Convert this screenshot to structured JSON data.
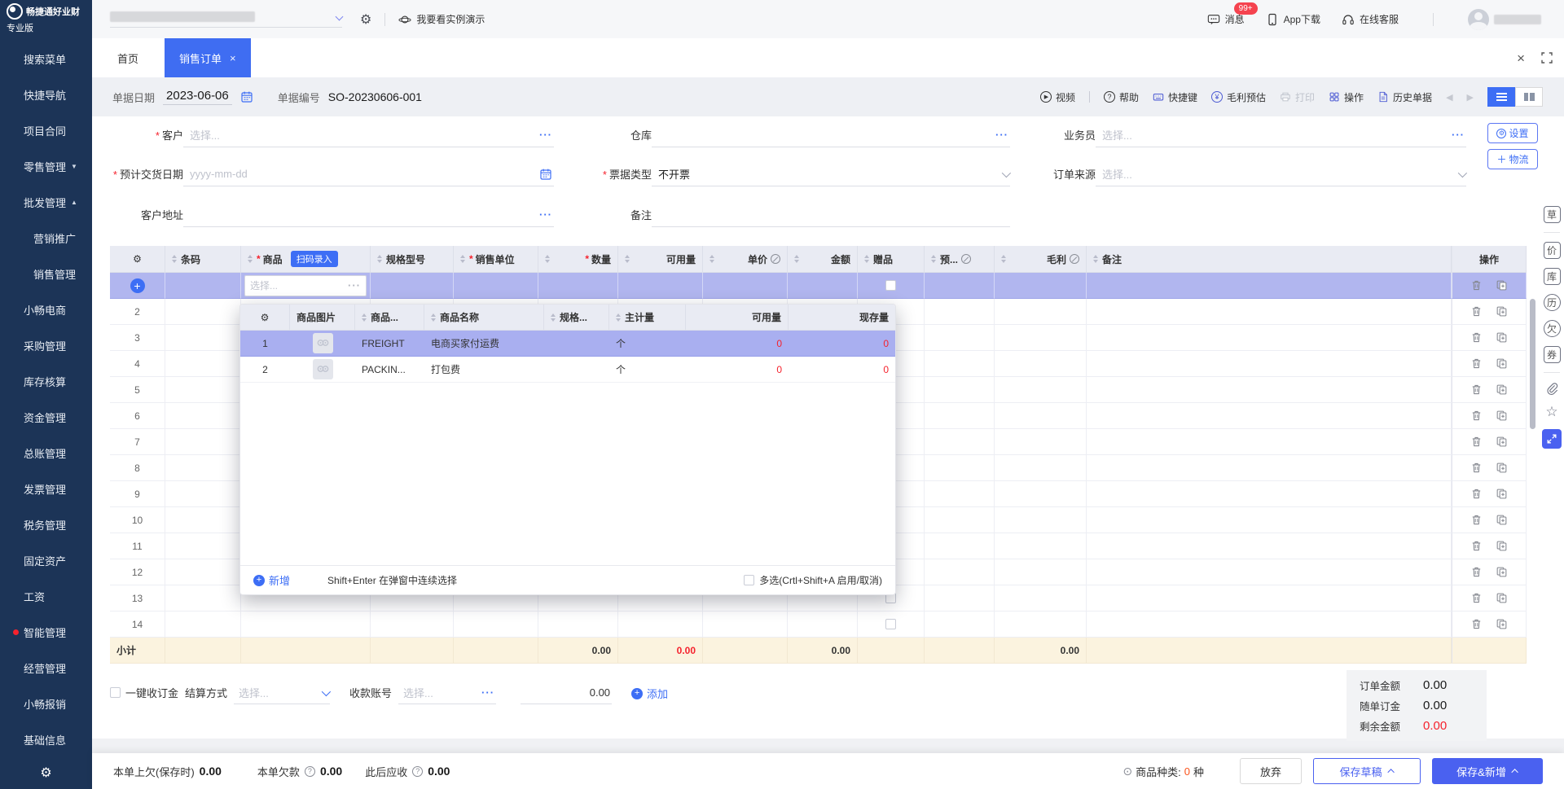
{
  "topbar": {
    "brand": "畅捷通好业财",
    "edition": "专业版",
    "demo": "我要看实例演示",
    "messages": "消息",
    "badge": "99+",
    "app_download": "App下载",
    "support": "在线客服"
  },
  "sidebar": {
    "items": [
      {
        "label": "搜索菜单"
      },
      {
        "label": "快捷导航"
      },
      {
        "label": "项目合同"
      },
      {
        "label": "零售管理",
        "arrow": "down"
      },
      {
        "label": "批发管理",
        "arrow": "up"
      },
      {
        "label": "营销推广",
        "sub": true
      },
      {
        "label": "销售管理",
        "sub": true
      },
      {
        "label": "小畅电商"
      },
      {
        "label": "采购管理"
      },
      {
        "label": "库存核算"
      },
      {
        "label": "资金管理"
      },
      {
        "label": "总账管理"
      },
      {
        "label": "发票管理"
      },
      {
        "label": "税务管理"
      },
      {
        "label": "固定资产"
      },
      {
        "label": "工资"
      },
      {
        "label": "智能管理",
        "dot": true
      },
      {
        "label": "经营管理"
      },
      {
        "label": "小畅报销"
      },
      {
        "label": "基础信息"
      }
    ]
  },
  "tabs": {
    "home": "首页",
    "current": "销售订单"
  },
  "docbar": {
    "date_label": "单据日期",
    "date": "2023-06-06",
    "no_label": "单据编号",
    "no": "SO-20230606-001",
    "tools": [
      {
        "label": "视频"
      },
      {
        "label": "帮助"
      },
      {
        "label": "快捷键"
      },
      {
        "label": "毛利预估"
      },
      {
        "label": "打印"
      },
      {
        "label": "操作"
      },
      {
        "label": "历史单据"
      }
    ]
  },
  "form": {
    "customer_label": "客户",
    "customer_placeholder": "选择...",
    "warehouse_label": "仓库",
    "salesman_label": "业务员",
    "salesman_placeholder": "选择...",
    "delivery_label": "预计交货日期",
    "delivery_placeholder": "yyyy-mm-dd",
    "invoice_label": "票据类型",
    "invoice_value": "不开票",
    "source_label": "订单来源",
    "source_placeholder": "选择...",
    "address_label": "客户地址",
    "remark_label": "备注",
    "settings_btn": "设置",
    "logistics_btn": "物流"
  },
  "grid": {
    "columns": [
      "条码",
      "商品",
      "规格型号",
      "销售单位",
      "数量",
      "可用量",
      "单价",
      "金额",
      "赠品",
      "预...",
      "毛利",
      "备注"
    ],
    "scan": "扫码录入",
    "op": "操作",
    "row_placeholder": "选择...",
    "empty_rows": [
      2,
      3,
      4,
      5,
      6,
      7,
      8,
      9,
      10,
      11,
      12,
      13,
      14
    ],
    "subtotal": {
      "label": "小计",
      "qty": "0.00",
      "avail": "0.00",
      "amount": "0.00",
      "profit": "0.00"
    }
  },
  "popup": {
    "columns": [
      "商品图片",
      "商品...",
      "商品名称",
      "规格...",
      "主计量",
      "可用量",
      "现存量"
    ],
    "rows": [
      {
        "no": "1",
        "code": "FREIGHT",
        "name": "电商买家付运费",
        "spec": "",
        "unit": "个",
        "avail": "0",
        "stock": "0",
        "selected": true
      },
      {
        "no": "2",
        "code": "PACKIN...",
        "name": "打包费",
        "spec": "",
        "unit": "个",
        "avail": "0",
        "stock": "0",
        "selected": false
      }
    ],
    "add": "新增",
    "hint": "Shift+Enter 在弹窗中连续选择",
    "multi": "多选(Crtl+Shift+A 启用/取消)"
  },
  "payment": {
    "deposit_check": "一键收订金",
    "settle_label": "结算方式",
    "settle_placeholder": "选择...",
    "account_label": "收款账号",
    "account_placeholder": "选择...",
    "amount": "0.00",
    "add": "添加"
  },
  "summary": {
    "order_label": "订单金额",
    "order": "0.00",
    "deposit_label": "随单订金",
    "deposit": "0.00",
    "remain_label": "剩余金额",
    "remain": "0.00"
  },
  "bottombar": {
    "prev_label": "本单上欠(保存时)",
    "prev": "0.00",
    "owe_label": "本单欠款",
    "owe": "0.00",
    "recv_label": "此后应收",
    "recv": "0.00",
    "kinds_label": "商品种类:",
    "kinds": "0",
    "kinds_unit": "种",
    "discard": "放弃",
    "save_draft": "保存草稿",
    "save_new": "保存&新增"
  },
  "side_strip": {
    "items": [
      {
        "ch": "草",
        "shape": "square",
        "key": "draft"
      },
      {
        "ch": "价",
        "shape": "square",
        "key": "price"
      },
      {
        "ch": "库",
        "shape": "square",
        "key": "stock"
      },
      {
        "ch": "历",
        "shape": "circle",
        "key": "history"
      },
      {
        "ch": "欠",
        "shape": "circle",
        "key": "debt"
      },
      {
        "ch": "券",
        "shape": "square",
        "key": "coupon"
      }
    ]
  }
}
